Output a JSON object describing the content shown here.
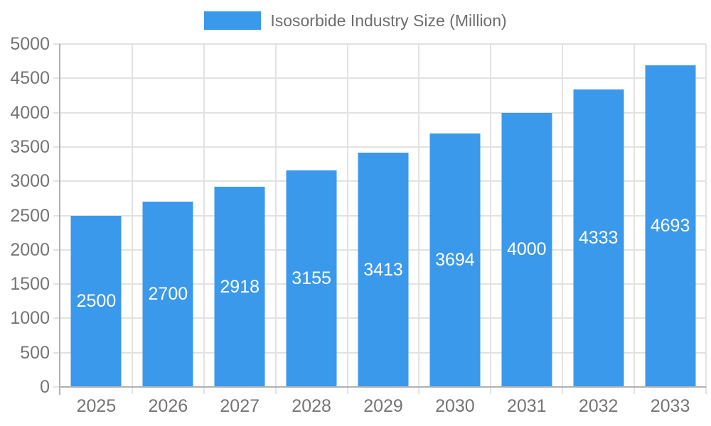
{
  "legend": {
    "label": "Isosorbide Industry Size (Million)"
  },
  "colors": {
    "bar": "#3b99ec",
    "grid": "#e2e2e2",
    "axis": "#b1b1b1",
    "tick_text": "#757575",
    "legend_text": "#6e6e6e",
    "bar_label_text": "#ffffff",
    "background": "#ffffff"
  },
  "chart_data": {
    "type": "bar",
    "title": "Isosorbide Industry Size (Million)",
    "categories": [
      "2025",
      "2026",
      "2027",
      "2028",
      "2029",
      "2030",
      "2031",
      "2032",
      "2033"
    ],
    "values": [
      2500,
      2700,
      2918,
      3155,
      3413,
      3694,
      4000,
      4333,
      4693
    ],
    "series": [
      {
        "name": "Isosorbide Industry Size (Million)",
        "values": [
          2500,
          2700,
          2918,
          3155,
          3413,
          3694,
          4000,
          4333,
          4693
        ]
      }
    ],
    "xlabel": "",
    "ylabel": "",
    "ylim": [
      0,
      5000
    ],
    "ytick_step": 500,
    "yticks": [
      0,
      500,
      1000,
      1500,
      2000,
      2500,
      3000,
      3500,
      4000,
      4500,
      5000
    ],
    "grid": true,
    "legend_position": "top-center",
    "bar_value_labels": "inside-center"
  }
}
